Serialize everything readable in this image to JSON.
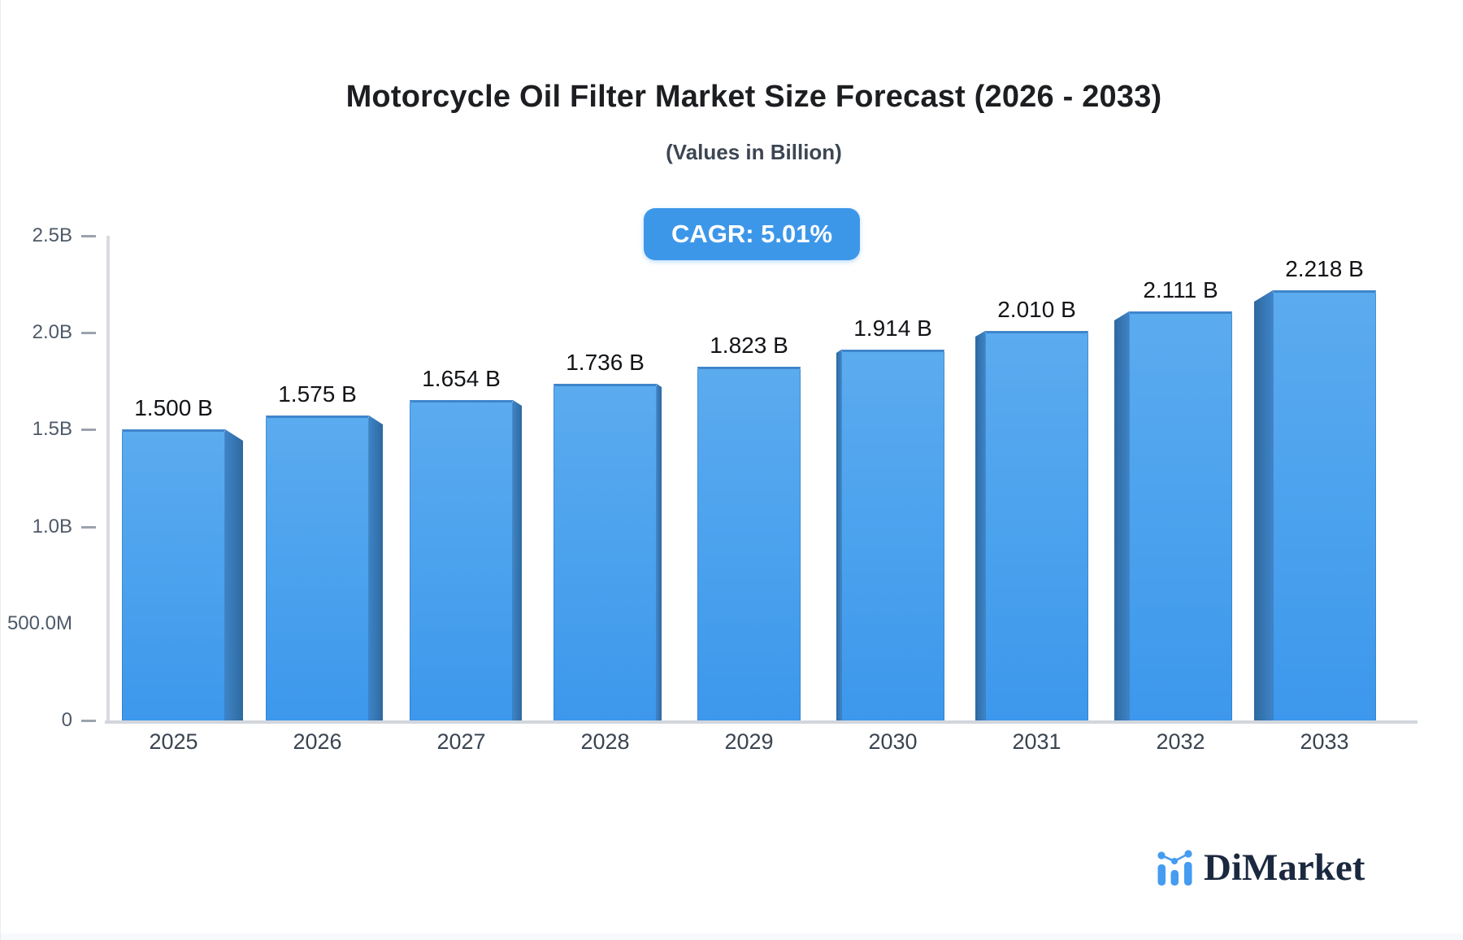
{
  "header": {
    "title": "Motorcycle Oil Filter Market Size Forecast (2026 - 2033)",
    "subtitle": "(Values in Billion)"
  },
  "badge": {
    "label": "CAGR: 5.01%"
  },
  "chart_data": {
    "type": "bar",
    "title": "Motorcycle Oil Filter Market Size Forecast (2026 - 2033)",
    "subtitle": "(Values in Billion)",
    "unit": "Billion",
    "cagr_label": "CAGR: 5.01%",
    "categories": [
      "2025",
      "2026",
      "2027",
      "2028",
      "2029",
      "2030",
      "2031",
      "2032",
      "2033"
    ],
    "values": [
      1.5,
      1.575,
      1.654,
      1.736,
      1.823,
      1.914,
      2.01,
      2.111,
      2.218
    ],
    "value_labels": [
      "1.500 B",
      "1.575 B",
      "1.654 B",
      "1.736 B",
      "1.823 B",
      "1.914 B",
      "2.010 B",
      "2.111 B",
      "2.218 B"
    ],
    "xlabel": "",
    "ylabel": "",
    "y_axis": {
      "range": [
        0,
        2.5
      ],
      "ticks": [
        {
          "label": "2.5B",
          "value": 2.5
        },
        {
          "label": "2.0B",
          "value": 2.0
        },
        {
          "label": "1.5B",
          "value": 1.5
        },
        {
          "label": "1.0B",
          "value": 1.0
        },
        {
          "label": "500.0M",
          "value": 0.5
        },
        {
          "label": "0",
          "value": 0
        }
      ]
    },
    "grid": false,
    "legend": false,
    "bar_style": "3d-perspective"
  },
  "logo": {
    "text": "DiMarket",
    "icon": "bar-line-chart-icon"
  },
  "colors": {
    "accent_blue": "#3d97e9",
    "bar_face_top": "#5babef",
    "bar_face_mid": "#4aa1ed",
    "bar_face_bottom": "#3d97ec",
    "bar_side_light": "#3f83c6",
    "bar_side_dark": "#2d699f",
    "bar_edge": "#3e85cc",
    "title_text": "#1c1e21",
    "axis_text": "#4e5a68",
    "logo_navy": "#1b2940",
    "logo_blue": "#459cf0"
  }
}
